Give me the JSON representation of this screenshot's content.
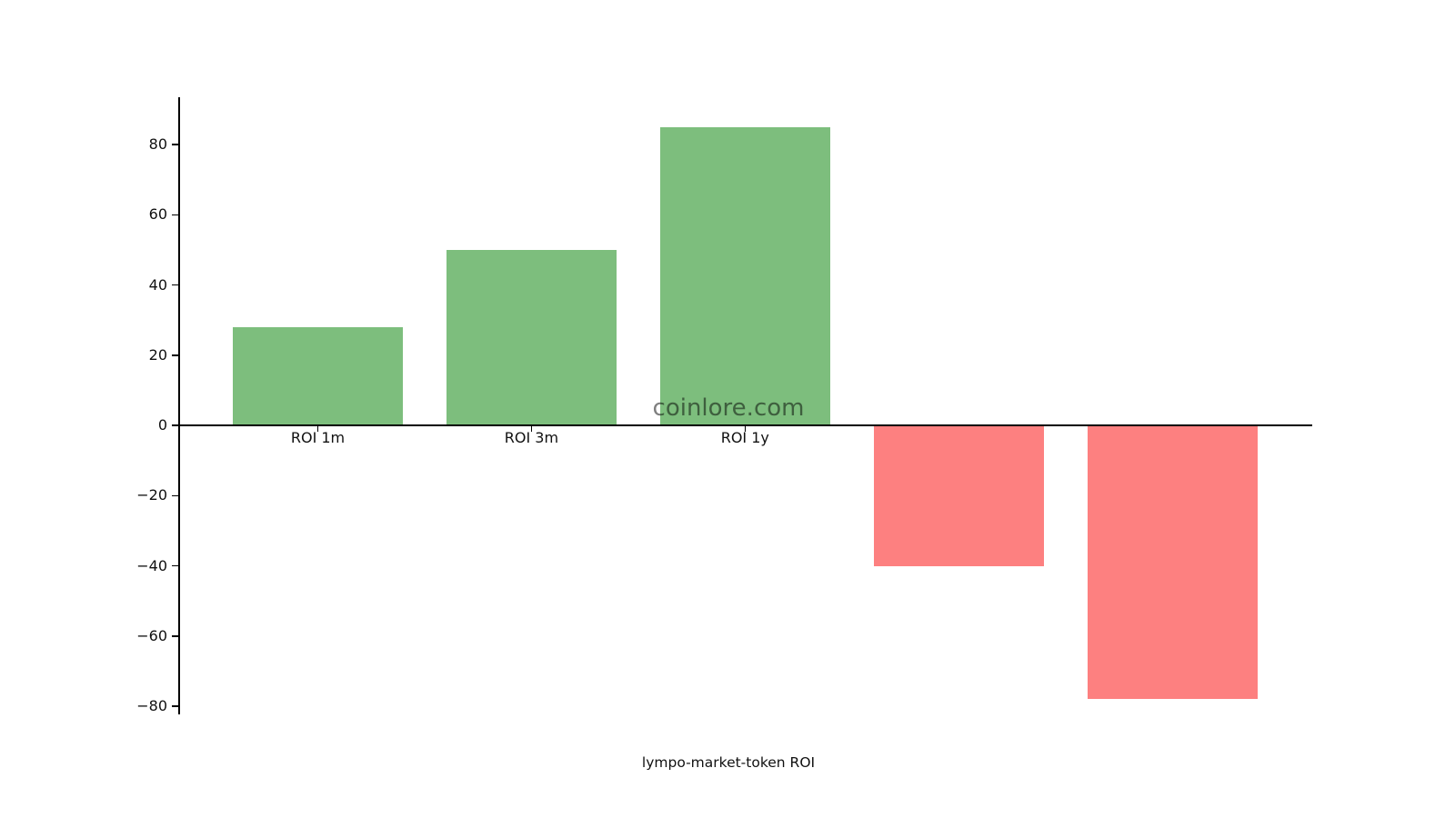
{
  "page": {
    "background": "#ffffff"
  },
  "chart_data": {
    "type": "bar",
    "title": "lympo-market-token ROI",
    "watermark": "coinlore.com",
    "categories": [
      "ROI 1m",
      "ROI 3m",
      "ROI 1y",
      "",
      ""
    ],
    "values": [
      28,
      50,
      85,
      -40,
      -78
    ],
    "bar_colors": [
      "#7dbe7d",
      "#7dbe7d",
      "#7dbe7d",
      "#fd8080",
      "#fd8080"
    ],
    "positive_color": "#7dbe7d",
    "negative_color": "#fd8080",
    "axis_color": "#000000",
    "y_ticks": [
      "80",
      "60",
      "40",
      "20",
      "0",
      "−20",
      "−40",
      "−60",
      "−80"
    ],
    "ylim": [
      -82,
      94
    ],
    "xlabel": "",
    "ylabel": "",
    "grid": false,
    "legend": false
  }
}
